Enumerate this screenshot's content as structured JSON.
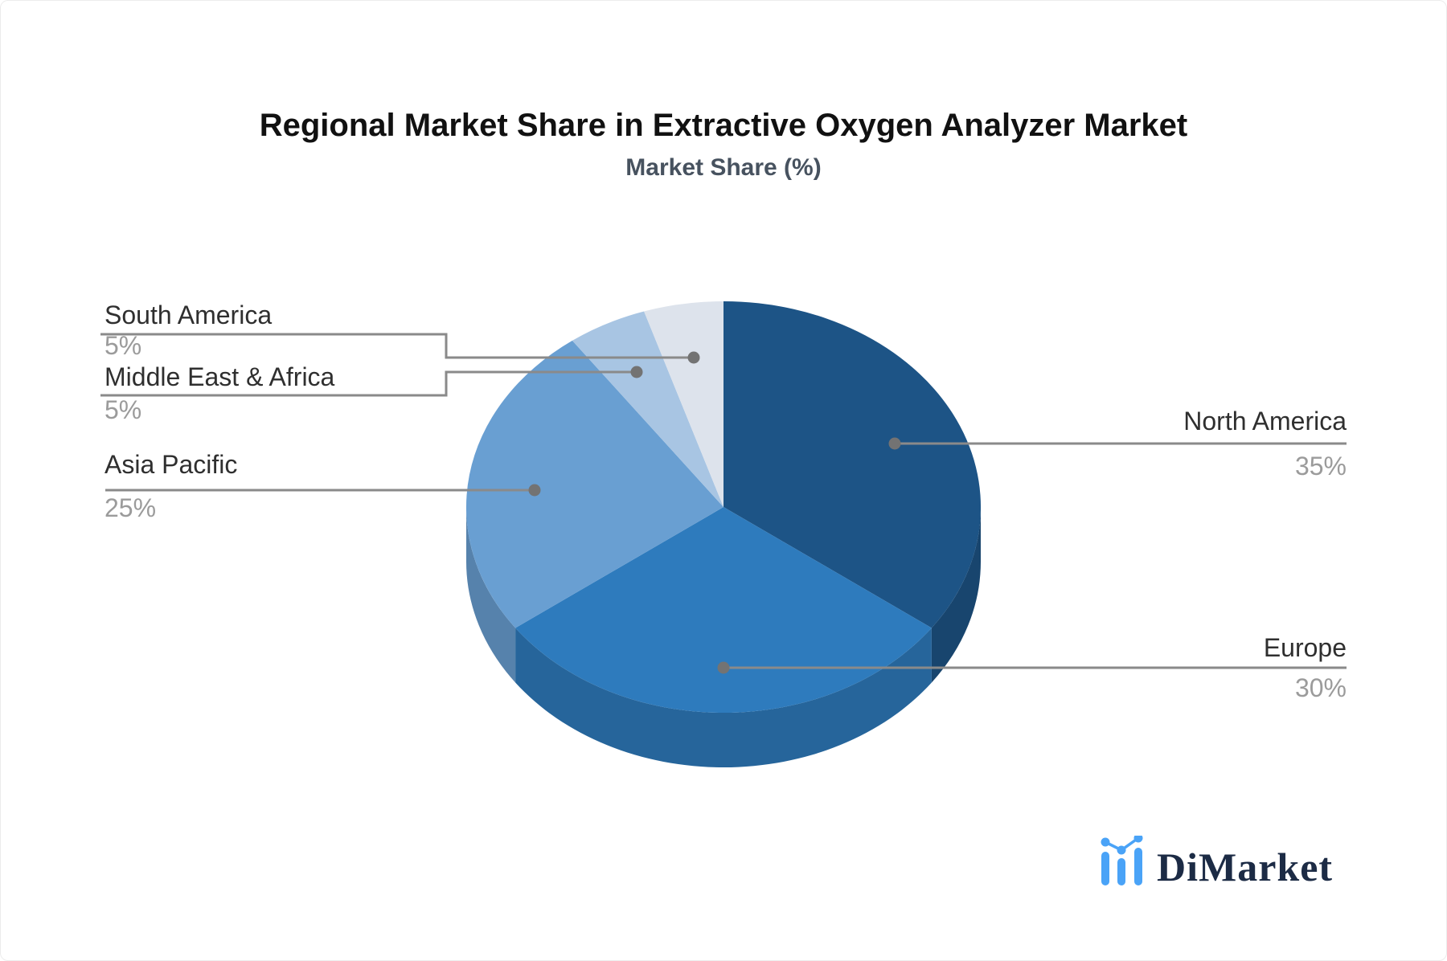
{
  "header": {
    "title": "Regional Market Share in Extractive Oxygen Analyzer Market",
    "subtitle": "Market Share (%)"
  },
  "chart_data": {
    "type": "pie",
    "title": "Regional Market Share in Extractive Oxygen Analyzer Market",
    "subtitle": "Market Share (%)",
    "unit": "%",
    "style": "3d-pie",
    "start_angle": "top",
    "direction": "clockwise",
    "label_layout": "callout-leader-lines",
    "slices": [
      {
        "label": "North America",
        "value": 35,
        "value_label": "35%",
        "color": "#1d5486",
        "callout_side": "right"
      },
      {
        "label": "Europe",
        "value": 30,
        "value_label": "30%",
        "color": "#2e7bbd",
        "callout_side": "right"
      },
      {
        "label": "Asia Pacific",
        "value": 25,
        "value_label": "25%",
        "color": "#699fd2",
        "callout_side": "left"
      },
      {
        "label": "Middle East & Africa",
        "value": 5,
        "value_label": "5%",
        "color": "#a8c5e3",
        "callout_side": "left"
      },
      {
        "label": "South America",
        "value": 5,
        "value_label": "5%",
        "color": "#dde3ec",
        "callout_side": "left"
      }
    ]
  },
  "branding": {
    "logo_text": "DiMarket",
    "logo_icon": "bar-line-chart-icon",
    "logo_text_color": "#1c2b45",
    "logo_icon_color": "#4aa3f7"
  },
  "style": {
    "leader_line_color": "#8a8a8a",
    "leader_dot_color": "#737373",
    "label_color": "#2f2f2f",
    "value_color": "#9b9b9b",
    "title_color": "#111111",
    "subtitle_color": "#47525f",
    "side_darken_factor": 0.82,
    "background": "#ffffff"
  }
}
